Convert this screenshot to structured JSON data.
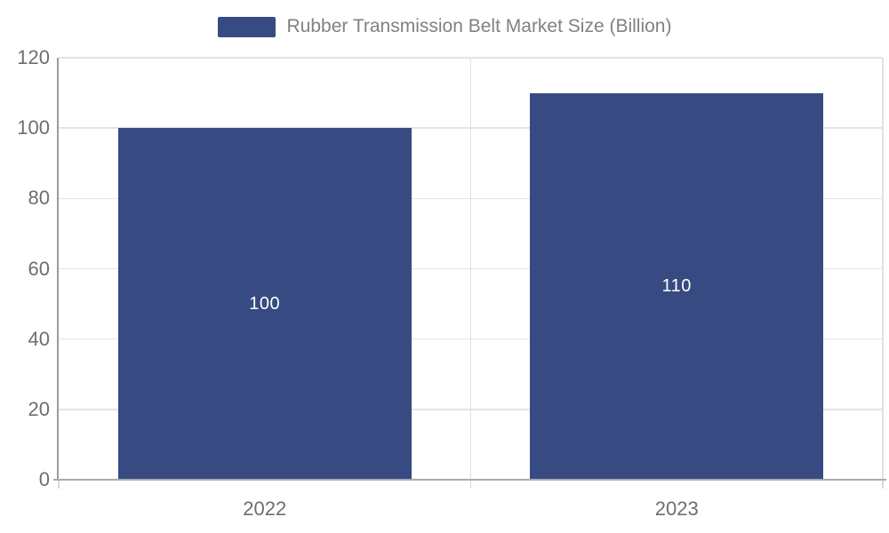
{
  "legend": {
    "label": "Rubber Transmission Belt Market Size (Billion)"
  },
  "chart_data": {
    "type": "bar",
    "title": "Rubber Transmission Belt Market Size (Billion)",
    "categories": [
      "2022",
      "2023"
    ],
    "series": [
      {
        "name": "Rubber Transmission Belt Market Size (Billion)",
        "values": [
          100,
          110
        ]
      }
    ],
    "data_labels": [
      "100",
      "110"
    ],
    "data_label_position": "inside-center",
    "xlabel": "",
    "ylabel": "",
    "ylim": [
      0,
      120
    ],
    "yticks": [
      0,
      20,
      40,
      60,
      80,
      100,
      120
    ],
    "grid": true,
    "legend_position": "top-center",
    "colors": {
      "bar": "#374A82",
      "data_label": "#ffffff",
      "axis_label": "#6e6e6e",
      "legend_text": "#818181",
      "gridline": "#e4e4e4",
      "axis_line": "#ababab",
      "background": "#ffffff"
    }
  }
}
